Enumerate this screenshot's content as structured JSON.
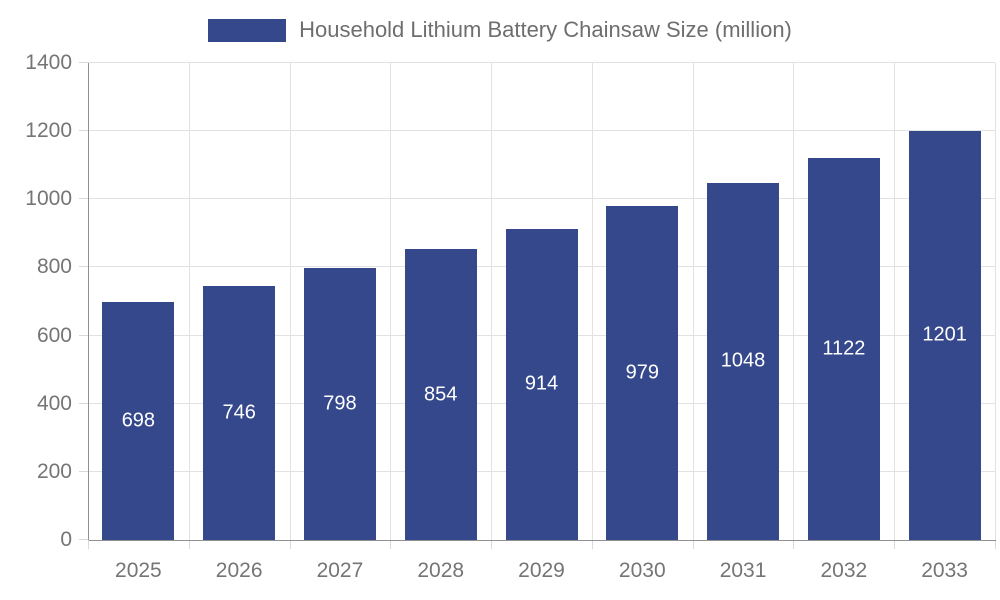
{
  "legend": {
    "label": "Household Lithium Battery Chainsaw Size (million)"
  },
  "chart_data": {
    "type": "bar",
    "title": "Household Lithium Battery Chainsaw Size (million)",
    "categories": [
      "2025",
      "2026",
      "2027",
      "2028",
      "2029",
      "2030",
      "2031",
      "2032",
      "2033"
    ],
    "values": [
      698,
      746,
      798,
      854,
      914,
      979,
      1048,
      1122,
      1201
    ],
    "xlabel": "",
    "ylabel": "",
    "ylim": [
      0,
      1400
    ],
    "yticks": [
      0,
      200,
      400,
      600,
      800,
      1000,
      1200,
      1400
    ],
    "grid": true,
    "legend_position": "top-center",
    "bar_color": "#36488c",
    "value_label_color": "#ffffff",
    "gridline_color": "#e2e2e2",
    "axis_color": "#909090",
    "tick_color": "#d9d9d9",
    "tick_label_color": "#757575"
  }
}
